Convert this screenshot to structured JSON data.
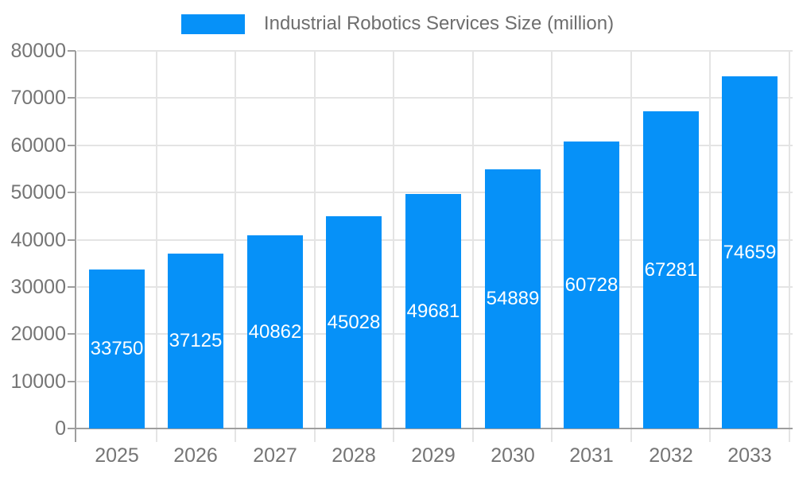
{
  "legend": {
    "label": "Industrial Robotics Services Size (million)",
    "swatch_color": "#0691F8"
  },
  "chart_data": {
    "type": "bar",
    "title": "Industrial Robotics Services Size (million)",
    "series_name": "Industrial Robotics Services Size (million)",
    "categories": [
      "2025",
      "2026",
      "2027",
      "2028",
      "2029",
      "2030",
      "2031",
      "2032",
      "2033"
    ],
    "values": [
      33750,
      37125,
      40862,
      45028,
      49681,
      54889,
      60728,
      67281,
      74659
    ],
    "xlabel": "",
    "ylabel": "",
    "ylim": [
      0,
      80000
    ],
    "ytick_step": 10000,
    "yticks": [
      0,
      10000,
      20000,
      30000,
      40000,
      50000,
      60000,
      70000,
      80000
    ],
    "grid": true,
    "legend_position": "top-center",
    "bar_color": "#0691F8",
    "bar_label_color": "#FFFFFF",
    "axis_text_color": "#757575",
    "legend_text_color": "#6E6E6E",
    "grid_color": "#E4E4E4",
    "axis_line_color": "#9E9E9E",
    "background_color": "#FFFFFF"
  }
}
